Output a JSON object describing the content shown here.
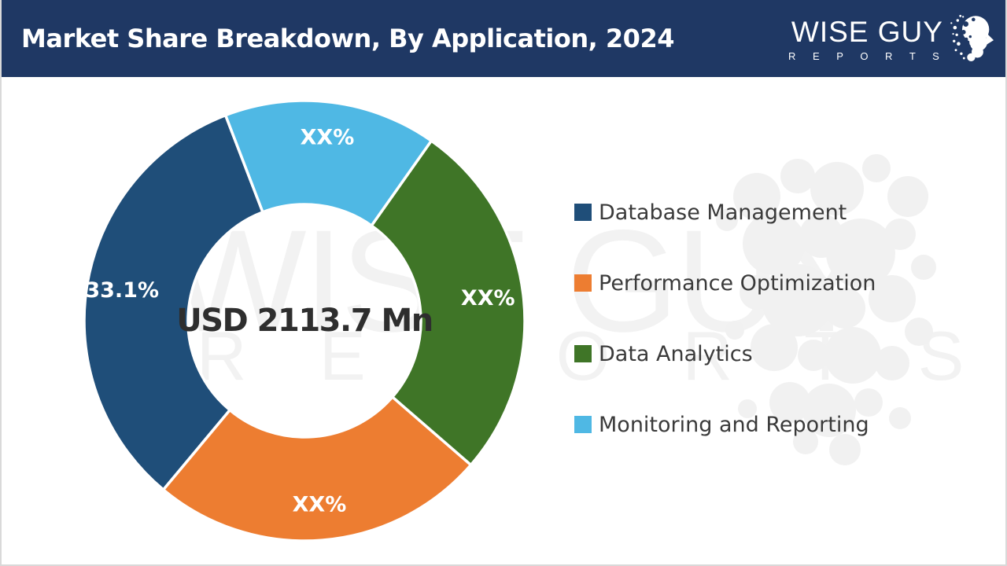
{
  "header": {
    "title": "Market Share Breakdown, By Application, 2024",
    "logo": {
      "word": "WISE GUY",
      "reports_line": "R E P O R T S",
      "icon": "face-profile-dots-icon"
    }
  },
  "watermark": {
    "word": "WISE GUY",
    "reports_line": "R E P O R T S"
  },
  "chart_data": {
    "type": "pie",
    "subtype": "donut",
    "title": "Market Share Breakdown, By Application, 2024",
    "center_label": "USD 2113.7 Mn",
    "legend_position": "right",
    "start_angle_deg_clockwise_from_top": 339,
    "direction": "counterclockwise",
    "label_color": "#ffffff",
    "separator_color": "#ffffff",
    "segments": [
      {
        "name": "Database Management",
        "value_pct": 33.1,
        "display_label": "33.1%",
        "color": "#1F4E79"
      },
      {
        "name": "Performance Optimization",
        "value_pct": 24.7,
        "display_label": "XX%",
        "color": "#ED7D31"
      },
      {
        "name": "Data Analytics",
        "value_pct": 26.6,
        "display_label": "XX%",
        "color": "#3F7527"
      },
      {
        "name": "Monitoring and Reporting",
        "value_pct": 15.6,
        "display_label": "XX%",
        "color": "#4FB8E4"
      }
    ]
  }
}
